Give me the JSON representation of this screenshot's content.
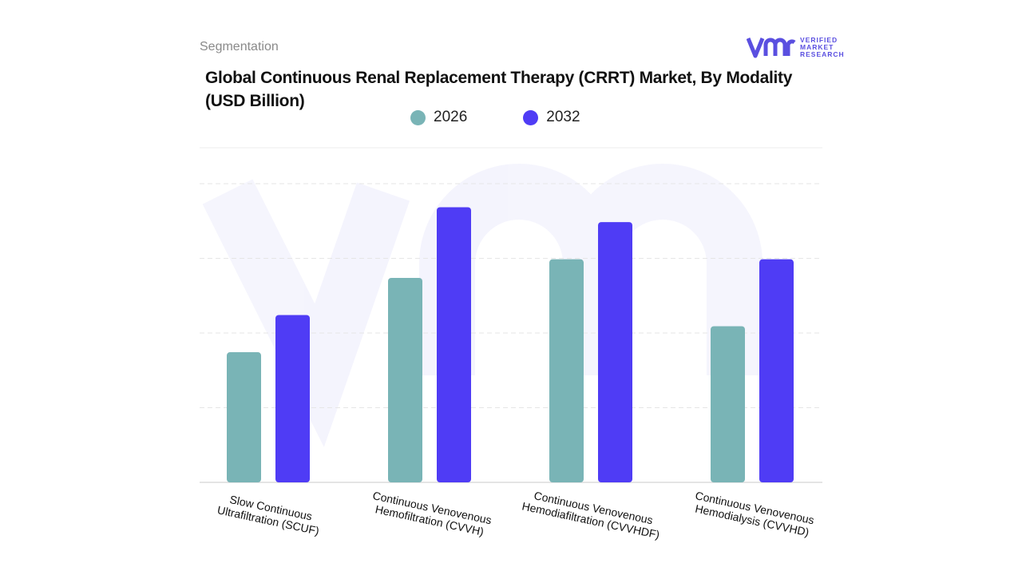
{
  "header": {
    "section_label": "Segmentation",
    "title": "Global Continuous Renal Replacement Therapy (CRRT) Market, By Modality (USD Billion)"
  },
  "logo": {
    "line1": "VERIFIED",
    "line2": "MARKET",
    "line3": "RESEARCH",
    "color": "#5a4fe0"
  },
  "legend": [
    {
      "label": "2026",
      "color": "#79b4b6"
    },
    {
      "label": "2032",
      "color": "#4f3cf5"
    }
  ],
  "chart_data": {
    "type": "bar",
    "categories": [
      "Slow Continuous Ultrafiltration (SCUF)",
      "Continuous Venovenous Hemofiltration (CVVH)",
      "Continuous Venovenous Hemodiafiltration (CVVHDF)",
      "Continuous Venovenous Hemodialysis (CVVHD)"
    ],
    "series": [
      {
        "name": "2026",
        "color": "#79b4b6",
        "values": [
          1.75,
          2.75,
          3.0,
          2.1
        ]
      },
      {
        "name": "2032",
        "color": "#4f3cf5",
        "values": [
          2.25,
          3.7,
          3.5,
          3.0
        ]
      }
    ],
    "ylim": [
      0,
      4.5
    ],
    "grid": true,
    "legend_position": "top-center",
    "title": "Global Continuous Renal Replacement Therapy (CRRT) Market, By Modality (USD Billion)",
    "xlabel": "",
    "ylabel": ""
  }
}
